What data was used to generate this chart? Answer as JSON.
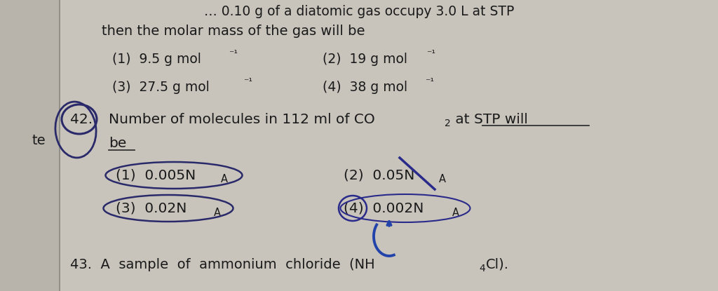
{
  "bg_color": "#c8c4bc",
  "panel_color": "#dddad3",
  "text_color": "#1a1a1a",
  "figsize": [
    10.24,
    4.15
  ],
  "dpi": 100,
  "top_line": "0.10 g of a diatomic gas occupy 3.0 L at STP",
  "line1": "then the molar mass of the gas will be",
  "opt1_1": "(1)  9.5 g mol",
  "opt1_2": "(2)  19 g mol",
  "opt1_3": "(3)  27.5 g mol",
  "opt1_4": "(4)  38 g mol",
  "q42": "42.",
  "q42_text1": "Number of molecules in 112 ml of CO",
  "q42_sub": "2",
  "q42_text2": " at STP will",
  "q42_line2": "be",
  "o1": "(1)  0.005N",
  "o2": "(2)  0.05N",
  "o3": "(3)  0.02N",
  "o4": "(4)  0.002N",
  "q43": "43.  A  sample  of  ammonium  chloride  (NH",
  "q43_sub": "4",
  "q43_end": "Cl)."
}
